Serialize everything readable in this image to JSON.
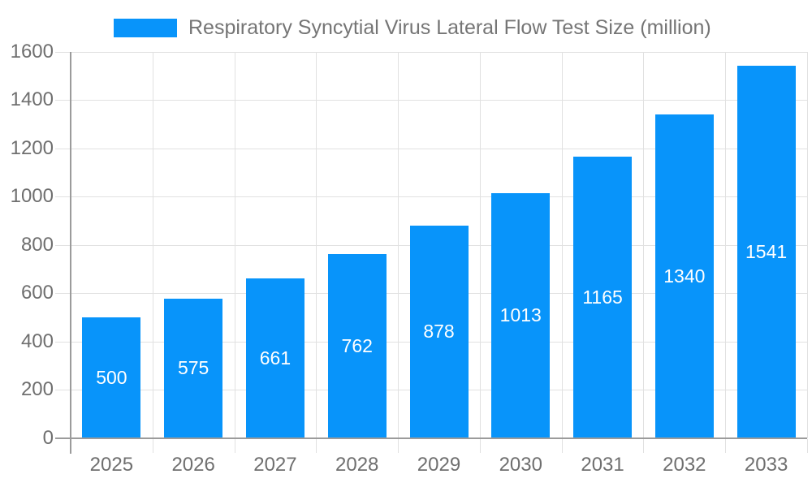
{
  "chart_data": {
    "type": "bar",
    "title": "Respiratory Syncytial Virus Lateral Flow Test Size (million)",
    "categories": [
      "2025",
      "2026",
      "2027",
      "2028",
      "2029",
      "2030",
      "2031",
      "2032",
      "2033"
    ],
    "values": [
      500,
      575,
      661,
      762,
      878,
      1013,
      1165,
      1340,
      1541
    ],
    "xlabel": "",
    "ylabel": "",
    "ylim": [
      0,
      1600
    ],
    "yticks": [
      0,
      200,
      400,
      600,
      800,
      1000,
      1200,
      1400,
      1600
    ],
    "grid": true,
    "legend_position": "top",
    "data_labels": "inside-center"
  },
  "colors": {
    "bar": "#0894FA",
    "grid": "#e1e1e1",
    "axis": "#9b9b9b",
    "tick_label": "#6f6f6f",
    "legend_text": "#757575",
    "bar_label": "#ffffff",
    "background": "#ffffff"
  }
}
